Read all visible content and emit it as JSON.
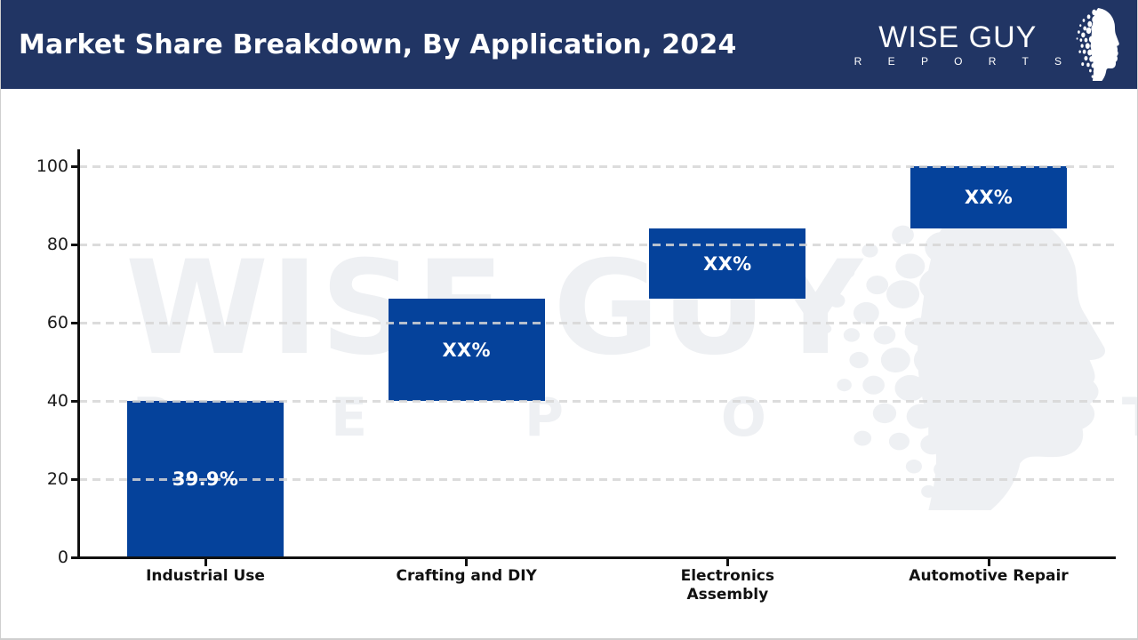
{
  "header": {
    "title": "Market Share Breakdown, By Application, 2024",
    "logo": {
      "wordmark": "WISE GUY",
      "subtitle": "R E P O R T S"
    }
  },
  "watermark": {
    "line1": "WISE GUY",
    "line2": "R E P O R T S"
  },
  "chart_data": {
    "type": "bar",
    "subtype": "floating-segment-waterfall",
    "title": "Market Share Breakdown, By Application, 2024",
    "categories": [
      "Industrial Use",
      "Crafting and DIY",
      "Electronics Assembly",
      "Automotive Repair"
    ],
    "category_display_lines": [
      [
        "Industrial Use"
      ],
      [
        "Crafting and DIY"
      ],
      [
        "Electronics",
        "Assembly"
      ],
      [
        "Automotive Repair"
      ]
    ],
    "segments": [
      {
        "category": "Industrial Use",
        "start": 0,
        "end": 39.9,
        "label": "39.9%"
      },
      {
        "category": "Crafting and DIY",
        "start": 39.9,
        "end": 66.1,
        "label": "XX%"
      },
      {
        "category": "Electronics Assembly",
        "start": 66.1,
        "end": 84.1,
        "label": "XX%"
      },
      {
        "category": "Automotive Repair",
        "start": 84.1,
        "end": 100,
        "label": "XX%"
      }
    ],
    "xlabel": "",
    "ylabel": "",
    "ylim": [
      0,
      100
    ],
    "yticks": [
      0,
      20,
      40,
      60,
      80,
      100
    ],
    "grid": "horizontal-dashed",
    "legend": "none",
    "bar_color": "#05429b",
    "bar_label_color": "#ffffff"
  },
  "colors": {
    "header_bg": "#213564",
    "bar": "#05429b",
    "axis": "#111111",
    "watermark": "#eef0f3",
    "page_bg": "#ffffff"
  }
}
